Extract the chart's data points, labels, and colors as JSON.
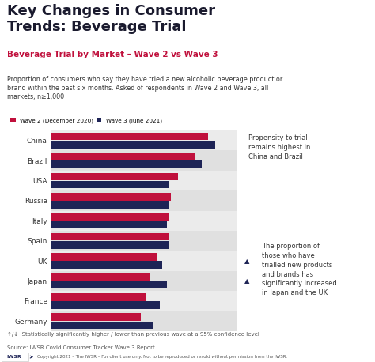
{
  "title": "Key Changes in Consumer\nTrends: Beverage Trial",
  "subtitle": "Beverage Trial by Market – Wave 2 vs Wave 3",
  "description": "Proportion of consumers who say they have tried a new alcoholic beverage product or\nbrand within the past six months. Asked of respondents in Wave 2 and Wave 3, all\nmarkets, n≥1,000",
  "legend_wave2": "Wave 2 (December 2020)",
  "legend_wave3": "Wave 3 (June 2021)",
  "countries": [
    "China",
    "Brazil",
    "USA",
    "Russia",
    "Italy",
    "Spain",
    "UK",
    "Japan",
    "France",
    "Germany"
  ],
  "wave2": [
    68,
    62,
    55,
    52,
    51,
    51,
    46,
    43,
    41,
    39
  ],
  "wave3": [
    71,
    65,
    51,
    51,
    50,
    51,
    48,
    50,
    47,
    44
  ],
  "color_wave2": "#c0103c",
  "color_wave3": "#1e2456",
  "bg_light": "#ebebeb",
  "bg_dark": "#e0e0e0",
  "annotation1_text": "Propensity to trial\nremains highest in\nChina and Brazil",
  "annotation2_text": "The proportion of\nthose who have\ntrialled new products\nand brands has\nsignificantly increased\nin Japan and the UK",
  "footnote": "↑/↓  Statistically significantly higher / lower than previous wave at a 95% confidence level",
  "source": "Source: IWSR Covid Consumer Tracker Wave 3 Report",
  "copyright": "Copyright 2021 – The IWSR – For client use only. Not to be reproduced or resold without permission from the IWSR.",
  "xlim": [
    0,
    80
  ],
  "bar_height": 0.38,
  "title_fontsize": 13,
  "subtitle_fontsize": 7.5,
  "description_fontsize": 5.8,
  "annotation_fontsize": 6.0,
  "tick_fontsize": 6.5,
  "footnote_fontsize": 5.0,
  "title_color": "#1a1a2e",
  "subtitle_color": "#c0103c",
  "text_color": "#333333"
}
